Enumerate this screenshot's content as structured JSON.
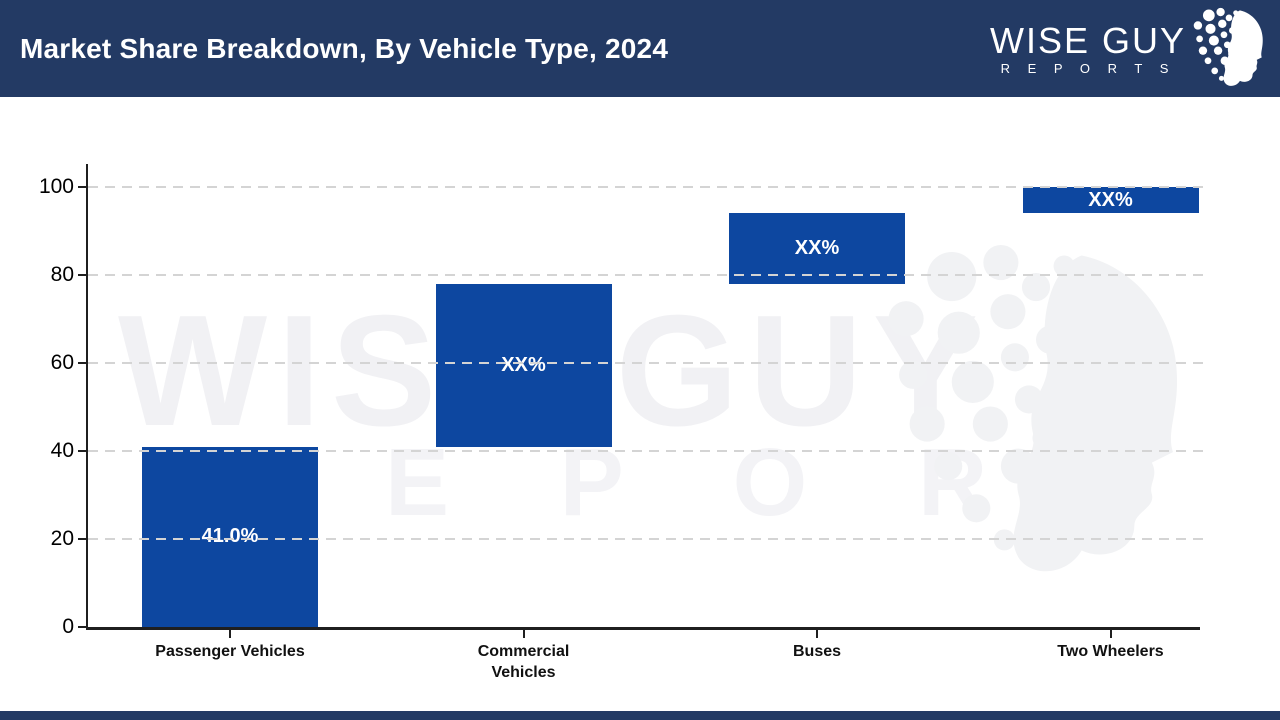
{
  "header": {
    "title": "Market Share Breakdown, By Vehicle Type, 2024",
    "logo": {
      "line1": "WISE GUY",
      "line2": "R E P O R T S"
    }
  },
  "watermark": {
    "line1": "WISE GUY",
    "line2": "R E P O R T S"
  },
  "colors": {
    "header_bg": "#233a64",
    "footer_bg": "#233a64",
    "bar": "#0d47a0",
    "gridline": "#d4d4d4",
    "watermark": "#f1f1f4"
  },
  "chart_data": {
    "type": "bar",
    "subtype": "waterfall",
    "title": "Market Share Breakdown, By Vehicle Type, 2024",
    "xlabel": "",
    "ylabel": "",
    "categories": [
      "Passenger Vehicles",
      "Commercial Vehicles",
      "Buses",
      "Two Wheelers"
    ],
    "values": [
      41,
      37,
      16,
      6
    ],
    "cumulative_start": [
      0,
      41,
      78,
      94
    ],
    "cumulative_end": [
      41,
      78,
      94,
      100
    ],
    "bar_labels": [
      "41.0%",
      "XX%",
      "XX%",
      "XX%"
    ],
    "yticks": [
      0,
      20,
      40,
      60,
      80,
      100
    ],
    "ylim": [
      0,
      105
    ],
    "grid": "horizontal-dashed",
    "legend": "none",
    "bar_color": "#0d47a0"
  }
}
